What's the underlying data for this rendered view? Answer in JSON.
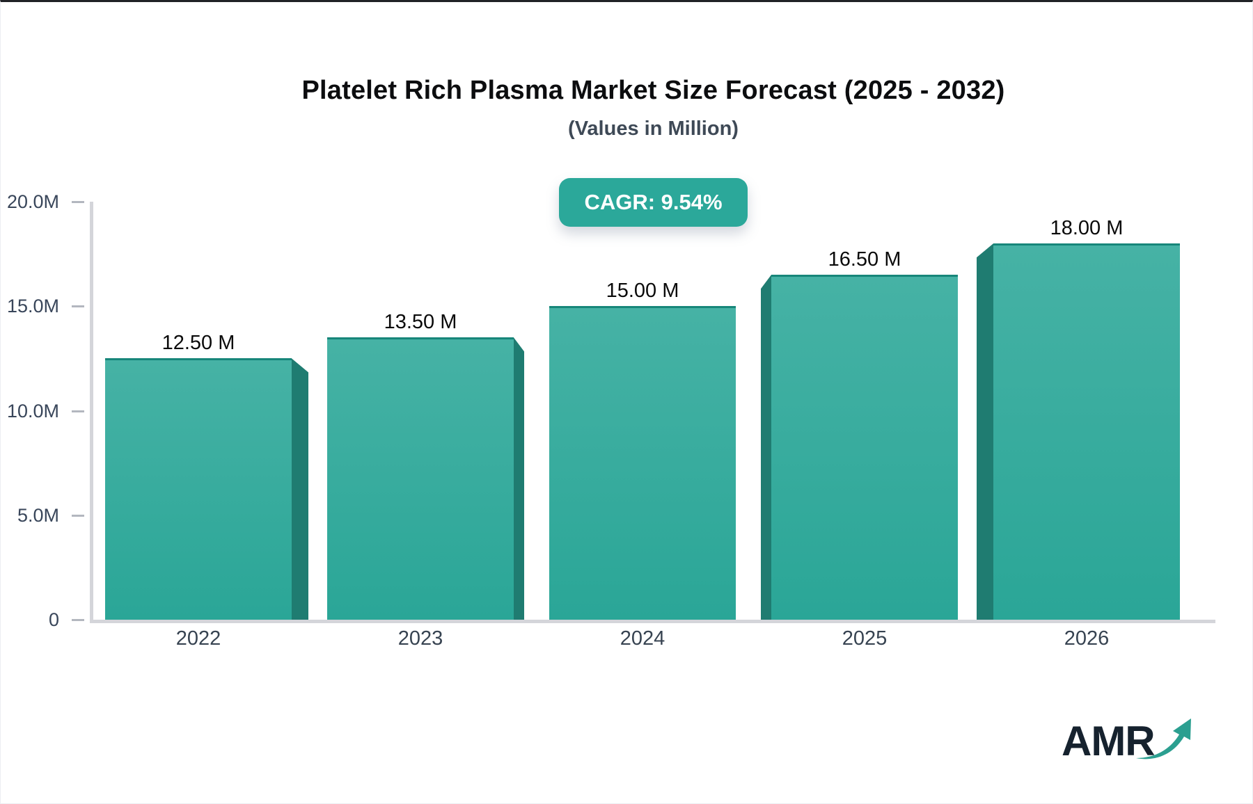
{
  "header": {
    "title": "Platelet Rich Plasma Market Size Forecast (2025 - 2032)",
    "subtitle": "(Values in Million)",
    "cagr_badge": "CAGR: 9.54%"
  },
  "chart_data": {
    "type": "bar",
    "title": "Platelet Rich Plasma Market Size Forecast (2025 - 2032)",
    "subtitle": "(Values in Million)",
    "categories": [
      "2022",
      "2023",
      "2024",
      "2025",
      "2026"
    ],
    "values": [
      12.5,
      13.5,
      15.0,
      16.5,
      18.0
    ],
    "bar_labels": [
      "12.50 M",
      "13.50 M",
      "15.00 M",
      "16.50 M",
      "18.00 M"
    ],
    "cagr": "9.54%",
    "xlabel": "",
    "ylabel": "",
    "ylim": [
      0,
      20
    ],
    "yticks": [
      0,
      5,
      10,
      15,
      20
    ],
    "ytick_labels": [
      "0",
      "5.0M",
      "10.0M",
      "15.0M",
      "20.0M"
    ],
    "grid": false,
    "legend": false,
    "bar_color_top": "#46b2a5",
    "bar_color_bottom": "#2aa697",
    "bar_side_color": "#1f7c71",
    "bar_top_stroke": "#17867a"
  },
  "branding": {
    "logo_text": "AMR",
    "logo_arrow_icon": "trend-up-arrow",
    "logo_text_color": "#16222e",
    "logo_arrow_color": "#2b9f90"
  },
  "colors": {
    "accent_teal": "#2ba89a",
    "axis_gray": "#d4d5da",
    "tick_gray": "#b3b7bf",
    "axis_label": "#39465a",
    "title_dark": "#0c0d0f"
  }
}
